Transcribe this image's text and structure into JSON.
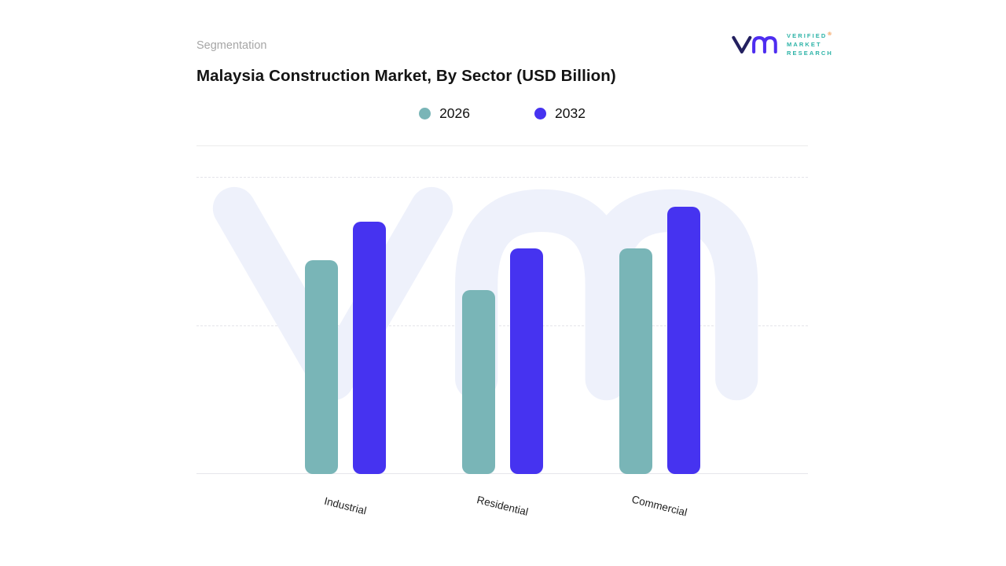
{
  "header": {
    "eyebrow": "Segmentation",
    "title": "Malaysia Construction Market, By Sector (USD Billion)"
  },
  "logo": {
    "line1": "VERIFIED",
    "line2": "MARKET",
    "line3": "RESEARCH",
    "registered_mark": "®"
  },
  "chart_data": {
    "type": "bar",
    "title": "Malaysia Construction Market, By Sector (USD Billion)",
    "y_unit": "USD Billion",
    "categories": [
      "Industrial",
      "Residential",
      "Commercial"
    ],
    "series": [
      {
        "name": "2026",
        "color": "#79b5b7",
        "values": [
          72,
          62,
          76
        ]
      },
      {
        "name": "2032",
        "color": "#4633f0",
        "values": [
          85,
          76,
          90
        ]
      }
    ],
    "ylim": [
      0,
      100
    ],
    "y_axis_labels_visible": false,
    "grid": "dashed horizontal",
    "legend_position": "top-center",
    "note": "Y-axis is unlabeled in source; values are estimated relative heights (% of plot height)."
  },
  "colors": {
    "bar_2026": "#79b5b7",
    "bar_2032": "#4633f0",
    "watermark": "#eef1fb",
    "brand_teal": "#2cb3a7",
    "brand_navy": "#23205f",
    "brand_indigo": "#4e2df0",
    "registered_orange": "#f07d1f",
    "eyebrow_gray": "#a6a6a6",
    "title_dark": "#141414"
  }
}
